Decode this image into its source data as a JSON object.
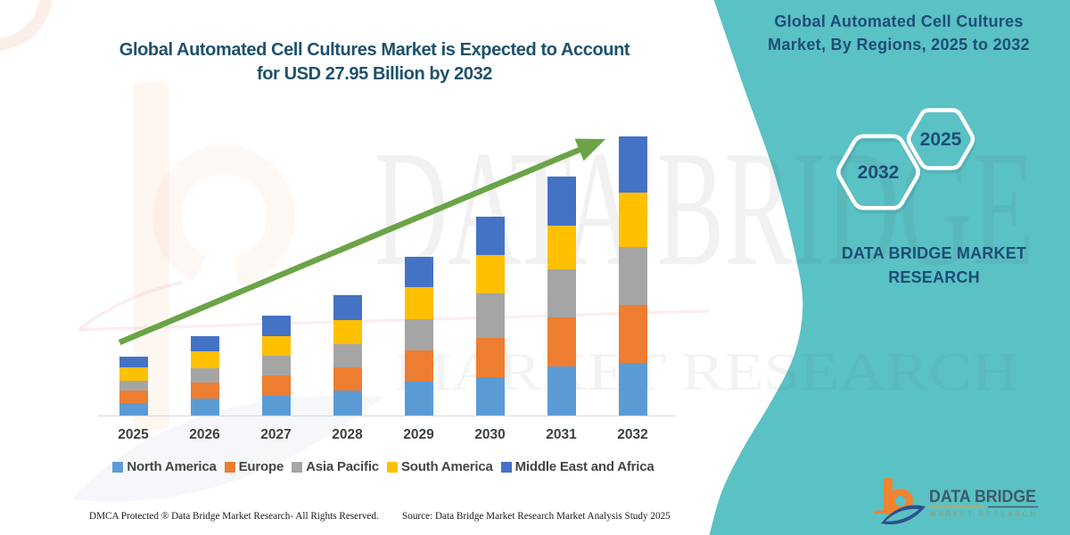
{
  "left_panel": {
    "title": "Global Automated Cell Cultures Market is Expected to Account for USD 27.95 Billion by 2032",
    "footer_left": "DMCA Protected ® Data Bridge Market Research-  All Rights Reserved.",
    "footer_right": "Source: Data Bridge Market Research  Market Analysis Study 2025"
  },
  "right_panel": {
    "title": "Global Automated Cell Cultures Market, By Regions, 2025 to 2032",
    "hexagons": [
      {
        "label": "2032"
      },
      {
        "label": "2025"
      }
    ],
    "brand_text": "DATA BRIDGE MARKET RESEARCH",
    "logo": {
      "name": "DATA BRIDGE",
      "subtitle": "MARKET RESEARCH"
    }
  },
  "watermark": {
    "line1": "DATA BRIDGE",
    "line2": "MARKET RESEARCH"
  },
  "colors": {
    "teal_background": "#5ac1c4",
    "left_title": "#1e516b",
    "right_title": "#1d4d77",
    "brand_text": "#1d4d77",
    "hexagon_year": "#1d4d77",
    "arrow_green": "#6ba447",
    "axis_label": "#3f3f3f",
    "north_america": "#5B9BD5",
    "europe": "#ED7D31",
    "asia_pacific": "#A5A5A5",
    "south_america": "#FFC000",
    "middle_east_africa": "#4472C4"
  },
  "chart_data": {
    "type": "bar",
    "stacked": true,
    "title": "Global Automated Cell Cultures Market is Expected to Account for USD 27.95 Billion by 2032",
    "categories": [
      "2025",
      "2026",
      "2027",
      "2028",
      "2029",
      "2030",
      "2031",
      "2032"
    ],
    "series": [
      {
        "name": "North America",
        "color": "#5B9BD5",
        "values": [
          1.22,
          1.67,
          1.96,
          2.49,
          3.43,
          3.88,
          4.9,
          5.23
        ]
      },
      {
        "name": "Europe",
        "color": "#ED7D31",
        "values": [
          1.25,
          1.68,
          2.05,
          2.32,
          3.12,
          3.88,
          4.9,
          5.88
        ]
      },
      {
        "name": "Asia Pacific",
        "color": "#A5A5A5",
        "values": [
          1.04,
          1.43,
          1.96,
          2.32,
          3.12,
          4.46,
          4.86,
          5.79
        ]
      },
      {
        "name": "South America",
        "color": "#FFC000",
        "values": [
          1.3,
          1.64,
          1.96,
          2.45,
          3.21,
          3.83,
          4.32,
          5.44
        ]
      },
      {
        "name": "Middle East and Africa",
        "color": "#4472C4",
        "values": [
          1.07,
          1.5,
          2.05,
          2.45,
          2.99,
          3.88,
          4.95,
          5.61
        ]
      }
    ],
    "totals": [
      5.88,
      7.92,
      9.98,
      12.03,
      15.87,
      19.93,
      23.93,
      27.95
    ],
    "ylim": [
      0,
      28
    ],
    "grid": false,
    "legend_position": "bottom",
    "trend_arrow": true
  }
}
